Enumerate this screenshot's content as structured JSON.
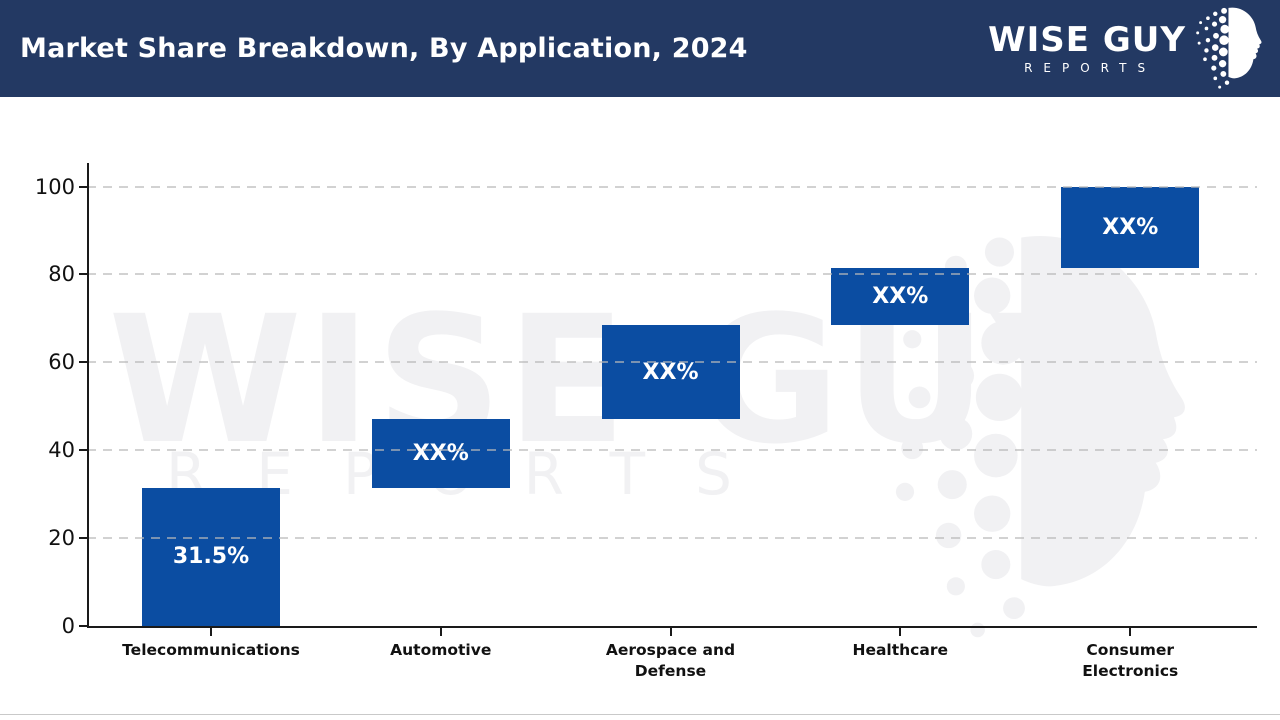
{
  "header": {
    "title": "Market Share Breakdown, By Application, 2024",
    "logo": {
      "line1": "WISE GUY",
      "line2": "REPORTS"
    }
  },
  "watermark": {
    "line1": "WISE GUY",
    "line2": "REPORTS"
  },
  "colors": {
    "header_bg": "#233963",
    "bar": "#0B4DA2",
    "bar_label": "#FFFFFF",
    "axis": "#1A1A1A",
    "grid_rgba": "rgba(185,185,185,0.65)",
    "watermark": "#F1F1F3",
    "tick_label": "#111111"
  },
  "chart_data": {
    "type": "bar",
    "subtype": "waterfall",
    "title": "Market Share Breakdown, By Application, 2024",
    "xlabel": "",
    "ylabel": "",
    "ylim": [
      0,
      100
    ],
    "yticks": [
      0,
      20,
      40,
      60,
      80,
      100
    ],
    "grid": "horizontal dashed",
    "legend": "none",
    "categories": [
      "Telecommunications",
      "Automotive",
      "Aerospace and Defense",
      "Healthcare",
      "Consumer Electronics"
    ],
    "segments": [
      {
        "category": "Telecommunications",
        "label_lines": [
          "Telecommunications"
        ],
        "start": 0,
        "end": 31.5,
        "value": 31.5,
        "data_label": "31.5%"
      },
      {
        "category": "Automotive",
        "label_lines": [
          "Automotive"
        ],
        "start": 31.5,
        "end": 47,
        "value": 15.5,
        "data_label": "XX%"
      },
      {
        "category": "Aerospace and Defense",
        "label_lines": [
          "Aerospace and",
          "Defense"
        ],
        "start": 47,
        "end": 68.5,
        "value": 21.5,
        "data_label": "XX%"
      },
      {
        "category": "Healthcare",
        "label_lines": [
          "Healthcare"
        ],
        "start": 68.5,
        "end": 81.5,
        "value": 13,
        "data_label": "XX%"
      },
      {
        "category": "Consumer Electronics",
        "label_lines": [
          "Consumer",
          "Electronics"
        ],
        "start": 81.5,
        "end": 100,
        "value": 18.5,
        "data_label": "XX%"
      }
    ]
  }
}
